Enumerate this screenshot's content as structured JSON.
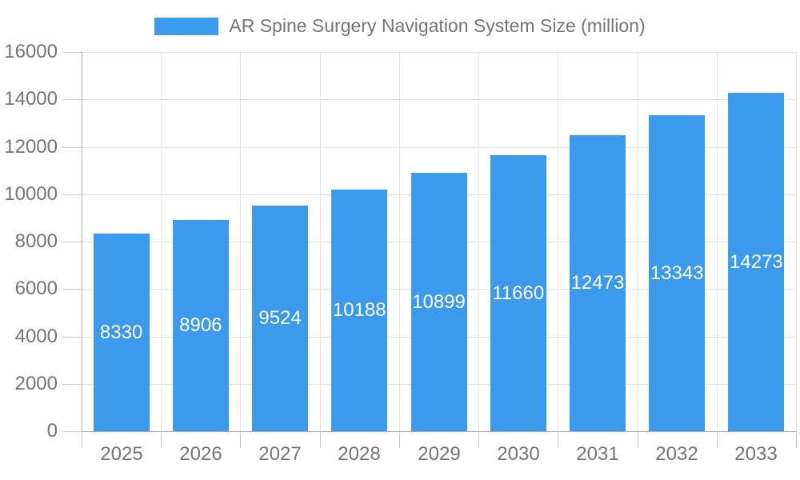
{
  "legend": {
    "label": "AR Spine Surgery Navigation System Size (million)"
  },
  "chart_data": {
    "type": "bar",
    "title": "",
    "categories": [
      "2025",
      "2026",
      "2027",
      "2028",
      "2029",
      "2030",
      "2031",
      "2032",
      "2033"
    ],
    "series": [
      {
        "name": "AR Spine Surgery Navigation System Size (million)",
        "values": [
          8330,
          8906,
          9524,
          10188,
          10899,
          11660,
          12473,
          13343,
          14273
        ]
      }
    ],
    "values": [
      8330,
      8906,
      9524,
      10188,
      10899,
      11660,
      12473,
      13343,
      14273
    ],
    "value_labels_position": "inside-middle",
    "xlabel": "",
    "ylabel": "",
    "ylim": [
      0,
      16000
    ],
    "yticks": [
      0,
      2000,
      4000,
      6000,
      8000,
      10000,
      12000,
      14000,
      16000
    ],
    "grid": true,
    "legend_position": "top-center",
    "colors": {
      "bar": "#3B9AEB",
      "value_label": "#FFFFFF",
      "axis_text": "#757575",
      "grid_line": "#E4E4E4",
      "axis_line": "#ABABAB",
      "tick_line": "#C9C9C9",
      "background": "#FFFFFF"
    }
  }
}
